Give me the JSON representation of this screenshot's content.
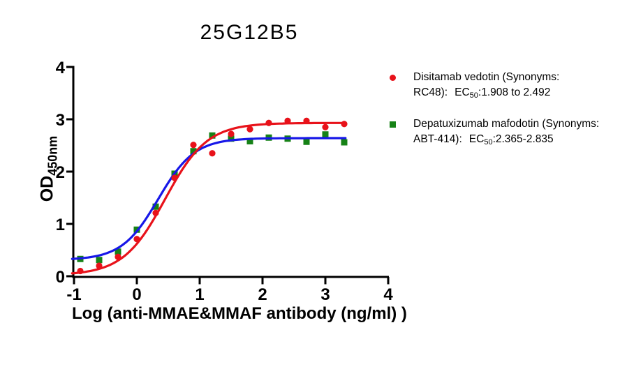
{
  "title": "25G12B5",
  "chart_data": {
    "type": "scatter",
    "title": "25G12B5",
    "xlabel": "Log (anti-MMAE&MMAF antibody (ng/ml) )",
    "ylabel_main": "OD",
    "ylabel_sub": "450nm",
    "xlim": [
      -1,
      4
    ],
    "ylim": [
      0,
      4
    ],
    "x_ticks": [
      "-1",
      "0",
      "1",
      "2",
      "3",
      "4"
    ],
    "y_ticks": [
      "0",
      "1",
      "2",
      "3",
      "4"
    ],
    "grid": false,
    "legend_position": "right",
    "x": [
      -0.9,
      -0.6,
      -0.3,
      0.0,
      0.3,
      0.6,
      0.9,
      1.2,
      1.5,
      1.8,
      2.1,
      2.4,
      2.7,
      3.0,
      3.3
    ],
    "series": [
      {
        "id": "disitamab-vedotin",
        "name": "Disitamab vedotin (Synonyms: RC48)",
        "ec50": "1.908 to 2.492",
        "marker": "circle",
        "marker_color": "#e8121a",
        "curve_color": "#e8121a",
        "values": [
          0.1,
          0.2,
          0.37,
          0.71,
          1.21,
          1.88,
          2.51,
          2.35,
          2.72,
          2.81,
          2.93,
          2.97,
          2.97,
          2.85,
          2.91
        ],
        "fit": {
          "bottom": 0.02,
          "top": 2.93,
          "logec50": 0.45,
          "hill": 1.3
        }
      },
      {
        "id": "depatuxizumab-mafodotin",
        "name": "Depatuxizumab mafodotin (Synonyms: ABT-414)",
        "ec50": "2.365-2.835",
        "marker": "square",
        "marker_color": "#168216",
        "curve_color": "#1717e8",
        "values": [
          0.33,
          0.31,
          0.47,
          0.89,
          1.33,
          1.96,
          2.39,
          2.69,
          2.63,
          2.58,
          2.65,
          2.63,
          2.57,
          2.71,
          2.56
        ],
        "fit": {
          "bottom": 0.31,
          "top": 2.64,
          "logec50": 0.34,
          "hill": 1.5
        }
      }
    ]
  },
  "legend": {
    "entries": [
      {
        "marker": "circle",
        "color": "#e8121a",
        "line1": "Disitamab vedotin (Synonyms:",
        "line2_label": "RC48):",
        "line2_ec": "EC",
        "line2_sub": "50",
        "line2_suffix": ":1.908 to 2.492"
      },
      {
        "marker": "square",
        "color": "#168216",
        "line1": "Depatuxizumab mafodotin (Synonyms:",
        "line2_label": "ABT-414):",
        "line2_ec": "EC",
        "line2_sub": "50",
        "line2_suffix": ":2.365-2.835"
      }
    ]
  }
}
